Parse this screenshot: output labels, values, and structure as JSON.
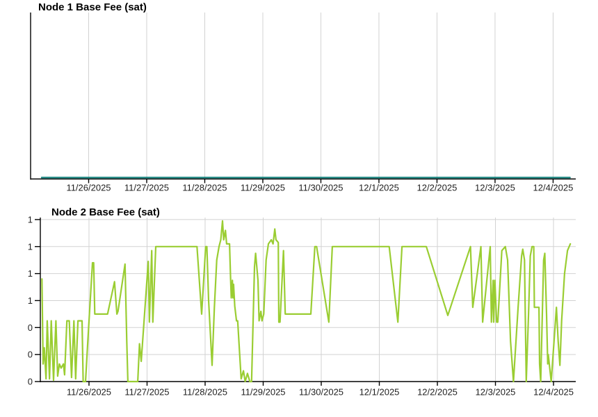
{
  "page": {
    "background": "#ffffff"
  },
  "colors": {
    "grid": "#d2d2d2",
    "axis": "#000000",
    "tick_text": "#1f1f1f"
  },
  "chart_data": [
    {
      "type": "line",
      "title": "Node 1 Base Fee (sat)",
      "xlabel": "",
      "ylabel": "",
      "legend": "none",
      "grid": "vertical-only",
      "line_color": "#11807a",
      "xlim": [
        0,
        9.39
      ],
      "ylim": [
        0,
        1
      ],
      "x_ticks": [
        {
          "t": 1,
          "label": "11/26/2025"
        },
        {
          "t": 2,
          "label": "11/27/2025"
        },
        {
          "t": 3,
          "label": "11/28/2025"
        },
        {
          "t": 4,
          "label": "11/29/2025"
        },
        {
          "t": 5,
          "label": "11/30/2025"
        },
        {
          "t": 6,
          "label": "12/1/2025"
        },
        {
          "t": 7,
          "label": "12/2/2025"
        },
        {
          "t": 8,
          "label": "12/3/2025"
        },
        {
          "t": 9,
          "label": "12/4/2025"
        }
      ],
      "y_ticks": [],
      "series": [
        {
          "name": "Node 1 Base Fee",
          "points": [
            [
              0.19,
              0
            ],
            [
              9.29,
              0
            ]
          ]
        }
      ]
    },
    {
      "type": "line",
      "title": "Node 2 Base Fee (sat)",
      "xlabel": "",
      "ylabel": "",
      "legend": "none",
      "grid": "both",
      "line_color": "#9acd32",
      "xlim": [
        0.162,
        9.383
      ],
      "ylim": [
        0,
        1.215
      ],
      "x_ticks": [
        {
          "t": 1,
          "label": "11/26/2025"
        },
        {
          "t": 2,
          "label": "11/27/2025"
        },
        {
          "t": 3,
          "label": "11/28/2025"
        },
        {
          "t": 4,
          "label": "11/29/2025"
        },
        {
          "t": 5,
          "label": "11/30/2025"
        },
        {
          "t": 6,
          "label": "12/1/2025"
        },
        {
          "t": 7,
          "label": "12/2/2025"
        },
        {
          "t": 8,
          "label": "12/3/2025"
        },
        {
          "t": 9,
          "label": "12/4/2025"
        }
      ],
      "y_ticks": [
        {
          "v": 1.2,
          "label": "1"
        },
        {
          "v": 1.0,
          "label": "1"
        },
        {
          "v": 0.8,
          "label": "1"
        },
        {
          "v": 0.6,
          "label": "1"
        },
        {
          "v": 0.4,
          "label": "0"
        },
        {
          "v": 0.2,
          "label": "0"
        },
        {
          "v": 0.0,
          "label": "0"
        }
      ],
      "series": [
        {
          "name": "Node 2 Base Fee",
          "points": [
            [
              0.19,
              0.76
            ],
            [
              0.21,
              0.13
            ],
            [
              0.23,
              0.25
            ],
            [
              0.26,
              0.02
            ],
            [
              0.28,
              0.45
            ],
            [
              0.32,
              0.02
            ],
            [
              0.35,
              0.45
            ],
            [
              0.39,
              0.01
            ],
            [
              0.43,
              0.45
            ],
            [
              0.46,
              0.04
            ],
            [
              0.49,
              0.13
            ],
            [
              0.52,
              0.1
            ],
            [
              0.56,
              0.13
            ],
            [
              0.58,
              0.05
            ],
            [
              0.62,
              0.45
            ],
            [
              0.66,
              0.45
            ],
            [
              0.7,
              0.03
            ],
            [
              0.74,
              0.45
            ],
            [
              0.77,
              0.02
            ],
            [
              0.81,
              0.45
            ],
            [
              0.88,
              0.45
            ],
            [
              0.9,
              0.0
            ],
            [
              0.94,
              0.0
            ],
            [
              0.98,
              0.3
            ],
            [
              1.06,
              0.88
            ],
            [
              1.08,
              0.88
            ],
            [
              1.1,
              0.5
            ],
            [
              1.18,
              0.5
            ],
            [
              1.32,
              0.5
            ],
            [
              1.44,
              0.74
            ],
            [
              1.48,
              0.5
            ],
            [
              1.5,
              0.52
            ],
            [
              1.62,
              0.87
            ],
            [
              1.65,
              0.3
            ],
            [
              1.67,
              0.0
            ],
            [
              1.84,
              0.0
            ],
            [
              1.87,
              0.28
            ],
            [
              1.9,
              0.15
            ],
            [
              2.02,
              0.89
            ],
            [
              2.04,
              0.44
            ],
            [
              2.08,
              0.97
            ],
            [
              2.1,
              0.44
            ],
            [
              2.15,
              1.0
            ],
            [
              2.86,
              1.0
            ],
            [
              2.94,
              0.5
            ],
            [
              3.01,
              1.0
            ],
            [
              3.03,
              1.0
            ],
            [
              3.06,
              0.6
            ],
            [
              3.12,
              0.12
            ],
            [
              3.16,
              0.55
            ],
            [
              3.2,
              0.9
            ],
            [
              3.24,
              1.0
            ],
            [
              3.27,
              1.05
            ],
            [
              3.3,
              1.19
            ],
            [
              3.32,
              1.05
            ],
            [
              3.35,
              1.12
            ],
            [
              3.37,
              1.02
            ],
            [
              3.42,
              1.02
            ],
            [
              3.44,
              0.75
            ],
            [
              3.45,
              0.62
            ],
            [
              3.47,
              0.75
            ],
            [
              3.48,
              0.62
            ],
            [
              3.49,
              0.72
            ],
            [
              3.51,
              0.56
            ],
            [
              3.54,
              0.45
            ],
            [
              3.56,
              0.45
            ],
            [
              3.62,
              0.02
            ],
            [
              3.66,
              0.08
            ],
            [
              3.69,
              0.0
            ],
            [
              3.73,
              0.06
            ],
            [
              3.77,
              0.0
            ],
            [
              3.8,
              0.0
            ],
            [
              3.85,
              0.85
            ],
            [
              3.87,
              0.95
            ],
            [
              3.91,
              0.75
            ],
            [
              3.93,
              0.45
            ],
            [
              3.96,
              0.52
            ],
            [
              3.98,
              0.45
            ],
            [
              4.01,
              0.5
            ],
            [
              4.05,
              0.9
            ],
            [
              4.09,
              1.02
            ],
            [
              4.14,
              1.05
            ],
            [
              4.17,
              1.02
            ],
            [
              4.2,
              1.13
            ],
            [
              4.22,
              1.05
            ],
            [
              4.26,
              1.03
            ],
            [
              4.27,
              0.44
            ],
            [
              4.29,
              0.44
            ],
            [
              4.35,
              0.97
            ],
            [
              4.38,
              0.5
            ],
            [
              4.82,
              0.5
            ],
            [
              4.89,
              1.0
            ],
            [
              4.92,
              1.0
            ],
            [
              5.13,
              0.44
            ],
            [
              5.19,
              1.0
            ],
            [
              6.17,
              1.0
            ],
            [
              6.32,
              0.44
            ],
            [
              6.39,
              1.0
            ],
            [
              6.81,
              1.0
            ],
            [
              7.18,
              0.49
            ],
            [
              7.57,
              1.0
            ],
            [
              7.61,
              0.55
            ],
            [
              7.75,
              1.0
            ],
            [
              7.78,
              0.44
            ],
            [
              7.91,
              1.0
            ],
            [
              7.93,
              0.44
            ],
            [
              7.96,
              0.75
            ],
            [
              7.97,
              0.44
            ],
            [
              7.99,
              0.75
            ],
            [
              8.02,
              0.44
            ],
            [
              8.04,
              0.44
            ],
            [
              8.11,
              0.97
            ],
            [
              8.17,
              1.0
            ],
            [
              8.21,
              0.9
            ],
            [
              8.26,
              0.3
            ],
            [
              8.31,
              0.0
            ],
            [
              8.39,
              0.55
            ],
            [
              8.45,
              0.93
            ],
            [
              8.47,
              0.98
            ],
            [
              8.5,
              0.9
            ],
            [
              8.53,
              0.0
            ],
            [
              8.57,
              0.5
            ],
            [
              8.6,
              0.93
            ],
            [
              8.63,
              1.0
            ],
            [
              8.66,
              1.0
            ],
            [
              8.67,
              0.55
            ],
            [
              8.75,
              0.55
            ],
            [
              8.76,
              0.13
            ],
            [
              8.78,
              0.0
            ],
            [
              8.83,
              0.9
            ],
            [
              8.85,
              0.95
            ],
            [
              8.88,
              0.5
            ],
            [
              8.9,
              0.13
            ],
            [
              8.91,
              0.2
            ],
            [
              8.96,
              0.0
            ],
            [
              9.05,
              0.55
            ],
            [
              9.08,
              0.3
            ],
            [
              9.11,
              0.12
            ],
            [
              9.14,
              0.45
            ],
            [
              9.19,
              0.8
            ],
            [
              9.24,
              0.97
            ],
            [
              9.29,
              1.02
            ]
          ]
        }
      ]
    }
  ]
}
